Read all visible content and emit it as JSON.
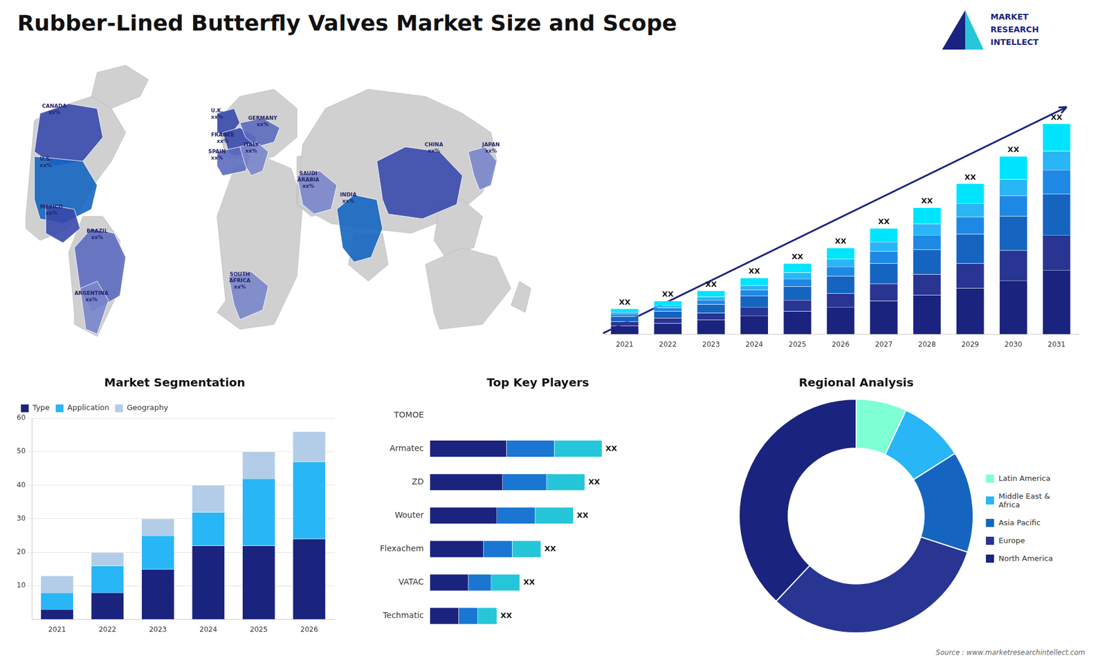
{
  "title": "Rubber-Lined Butterfly Valves Market Size and Scope",
  "annotations": [
    "Source : www.marketresearchintellect.com",
    "MARKET",
    "RESEARCH",
    "INTELLECT"
  ],
  "chart_data": [
    {
      "type": "map",
      "annotations": [
        "CANADA\nxx%",
        "U.S.\nxx%",
        "MEXICO\nxx%",
        "BRAZIL\nxx%",
        "ARGENTINA\nxx%",
        "U.K.\nxx%",
        "FRANCE\nxx%",
        "SPAIN\nxx%",
        "GERMANY\nxx%",
        "ITALY\nxx%",
        "SAUDI\nARABIA\nxx%",
        "SOUTH\nAFRICA\nxx%",
        "CHINA\nxx%",
        "INDIA\nxx%",
        "JAPAN\nxx%"
      ]
    },
    {
      "type": "bar",
      "stacked": true,
      "categories": [
        "2021",
        "2022",
        "2023",
        "2024",
        "2025",
        "2026",
        "2027",
        "2028",
        "2029",
        "2030",
        "2031"
      ],
      "series": [
        {
          "color": "#1a237e",
          "values": [
            1.0,
            1.3,
            1.7,
            2.2,
            2.7,
            3.2,
            3.9,
            4.6,
            5.4,
            6.3,
            7.5
          ]
        },
        {
          "color": "#283593",
          "values": [
            0.5,
            0.6,
            0.8,
            1.0,
            1.3,
            1.6,
            2.0,
            2.4,
            2.9,
            3.5,
            4.1
          ]
        },
        {
          "color": "#1565c0",
          "values": [
            0.6,
            0.8,
            1.0,
            1.3,
            1.6,
            2.0,
            2.4,
            2.9,
            3.4,
            4.0,
            4.8
          ]
        },
        {
          "color": "#1e88e5",
          "values": [
            0.3,
            0.4,
            0.5,
            0.7,
            0.9,
            1.1,
            1.4,
            1.7,
            2.0,
            2.4,
            2.8
          ]
        },
        {
          "color": "#29b6f6",
          "values": [
            0.2,
            0.3,
            0.4,
            0.5,
            0.7,
            0.9,
            1.1,
            1.3,
            1.6,
            1.9,
            2.2
          ]
        },
        {
          "color": "#00e5ff",
          "values": [
            0.4,
            0.5,
            0.7,
            0.9,
            1.1,
            1.3,
            1.6,
            1.9,
            2.3,
            2.7,
            3.2
          ]
        }
      ],
      "value_labels": [
        "XX",
        "XX",
        "XX",
        "XX",
        "XX",
        "XX",
        "XX",
        "XX",
        "XX",
        "XX",
        "XX"
      ],
      "ylim": [
        0,
        31.98
      ],
      "tick_labels": "x",
      "grid": false
    },
    {
      "type": "bar",
      "stacked": true,
      "title": "Market Segmentation",
      "categories": [
        "2021",
        "2022",
        "2023",
        "2024",
        "2025",
        "2026"
      ],
      "series": [
        {
          "name": "Type",
          "color": "#1a237e",
          "values": [
            3,
            8,
            15,
            22,
            22,
            24
          ]
        },
        {
          "name": "Application",
          "color": "#29b6f6",
          "values": [
            5,
            8,
            10,
            10,
            20,
            23
          ]
        },
        {
          "name": "Geography",
          "color": "#b3cde8",
          "values": [
            5,
            4,
            5,
            8,
            8,
            9
          ]
        }
      ],
      "ylim": [
        0,
        60
      ],
      "yticks": [
        10,
        20,
        30,
        40,
        50,
        60
      ],
      "grid": true,
      "legend": "upper left"
    },
    {
      "type": "bar",
      "stacked": true,
      "orientation": "horizontal",
      "title": "Top Key Players",
      "categories": [
        "TOMOE",
        "Armatec",
        "ZD",
        "Wouter",
        "Flexachem",
        "VATAC",
        "Techmatic"
      ],
      "series": [
        {
          "color": "#1a237e",
          "values": [
            0,
            4.0,
            3.8,
            3.5,
            2.8,
            2.0,
            1.5
          ]
        },
        {
          "color": "#1976d2",
          "values": [
            0,
            2.5,
            2.3,
            2.0,
            1.5,
            1.2,
            1.0
          ]
        },
        {
          "color": "#26c6da",
          "values": [
            0,
            2.5,
            2.0,
            2.0,
            1.5,
            1.5,
            1.0
          ]
        }
      ],
      "value_labels": [
        null,
        "XX",
        "XX",
        "XX",
        "XX",
        "XX",
        "XX"
      ],
      "xlim": [
        0,
        14
      ],
      "tick_labels": "y",
      "grid": false
    },
    {
      "type": "doughnut",
      "title": "Regional Analysis",
      "categories": [
        "Latin America",
        "Middle East &\nAfrica",
        "Asia Pacific",
        "Europe",
        "North America"
      ],
      "values": [
        7,
        9,
        14,
        32,
        38
      ],
      "colors": [
        "#7fffd4",
        "#29b6f6",
        "#1565c0",
        "#283593",
        "#1a237e"
      ],
      "legend": "right"
    }
  ]
}
